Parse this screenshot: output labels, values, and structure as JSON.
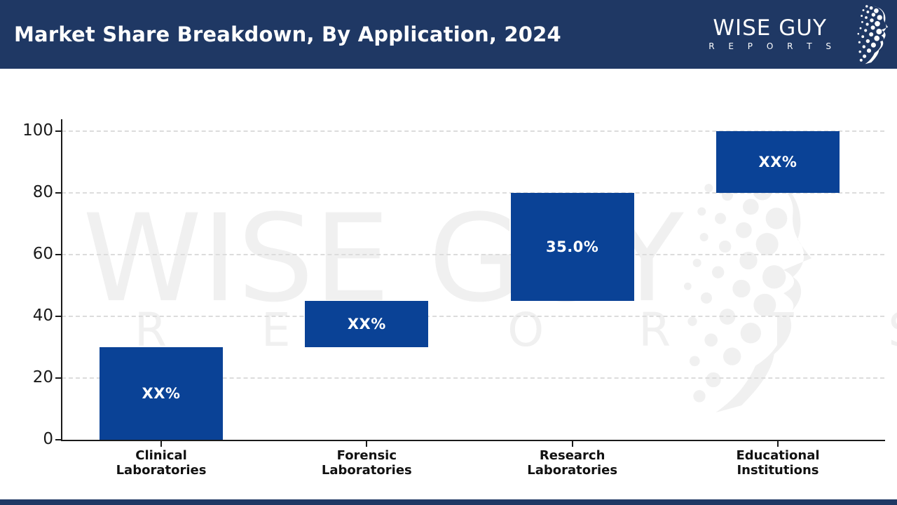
{
  "header": {
    "title": "Market Share Breakdown, By Application, 2024",
    "bg_color": "#1f3864",
    "logo": {
      "name": "WISE GUY",
      "tagline": "R E P O R T S"
    }
  },
  "watermark": {
    "line1": "WISE GUY",
    "line2": "R E P O R T S"
  },
  "chart_data": {
    "type": "bar",
    "variant": "waterfall",
    "title": "Market Share Breakdown, By Application, 2024",
    "xlabel": "",
    "ylabel": "",
    "ylim": [
      0,
      100
    ],
    "yticks": [
      0,
      20,
      40,
      60,
      80,
      100
    ],
    "grid": {
      "axis": "y",
      "style": "dashed",
      "color": "#dcdcdc"
    },
    "legend": "none",
    "bar_color": "#0a4296",
    "bar_label_color": "#ffffff",
    "categories": [
      "Clinical Laboratories",
      "Forensic Laboratories",
      "Research Laboratories",
      "Educational Institutions"
    ],
    "segments": [
      {
        "category_lines": [
          "Clinical",
          "Laboratories"
        ],
        "start": 0,
        "end": 30,
        "label": "XX%"
      },
      {
        "category_lines": [
          "Forensic",
          "Laboratories"
        ],
        "start": 30,
        "end": 45,
        "label": "XX%"
      },
      {
        "category_lines": [
          "Research",
          "Laboratories"
        ],
        "start": 45,
        "end": 80,
        "label": "35.0%"
      },
      {
        "category_lines": [
          "Educational",
          "Institutions"
        ],
        "start": 80,
        "end": 100,
        "label": "XX%"
      }
    ]
  },
  "footer": {
    "bg_color": "#1f3864"
  }
}
